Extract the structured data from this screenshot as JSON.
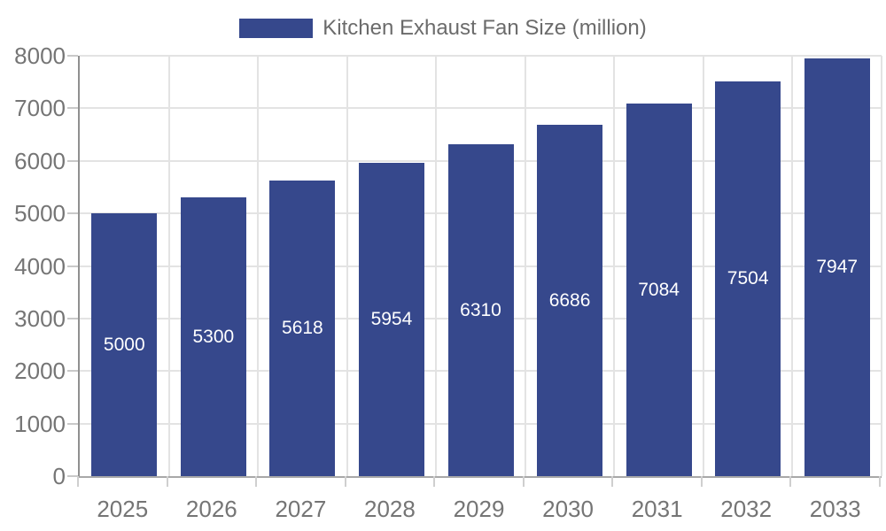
{
  "legend": {
    "label": "Kitchen Exhaust Fan Size (million)"
  },
  "chart_data": {
    "type": "bar",
    "title": "Kitchen Exhaust Fan Size (million)",
    "categories": [
      "2025",
      "2026",
      "2027",
      "2028",
      "2029",
      "2030",
      "2031",
      "2032",
      "2033"
    ],
    "values": [
      5000,
      5300,
      5618,
      5954,
      6310,
      6686,
      7084,
      7504,
      7947
    ],
    "value_labels": [
      "5000",
      "5300",
      "5618",
      "5954",
      "6310",
      "6686",
      "7084",
      "7504",
      "7947"
    ],
    "xlabel": "",
    "ylabel": "",
    "ylim": [
      0,
      8000
    ],
    "yticks": [
      0,
      1000,
      2000,
      3000,
      4000,
      5000,
      6000,
      7000,
      8000
    ],
    "ytick_labels": [
      "0",
      "1000",
      "2000",
      "3000",
      "4000",
      "5000",
      "6000",
      "7000",
      "8000"
    ],
    "grid": true,
    "grid_vertical": true,
    "legend_position": "top-center",
    "value_label_position": "bar-center",
    "colors": {
      "bar": "#36488C",
      "value_label": "#ffffff",
      "tick_label": "#757575",
      "legend_text": "#6b6b6b",
      "gridline": "#e3e3e3",
      "y_axis_line": "#909090",
      "x_axis_line": "#a8a8a8",
      "y_tick": "#c9c9c9",
      "x_tick": "#cfcfcf",
      "background": "#ffffff"
    }
  }
}
